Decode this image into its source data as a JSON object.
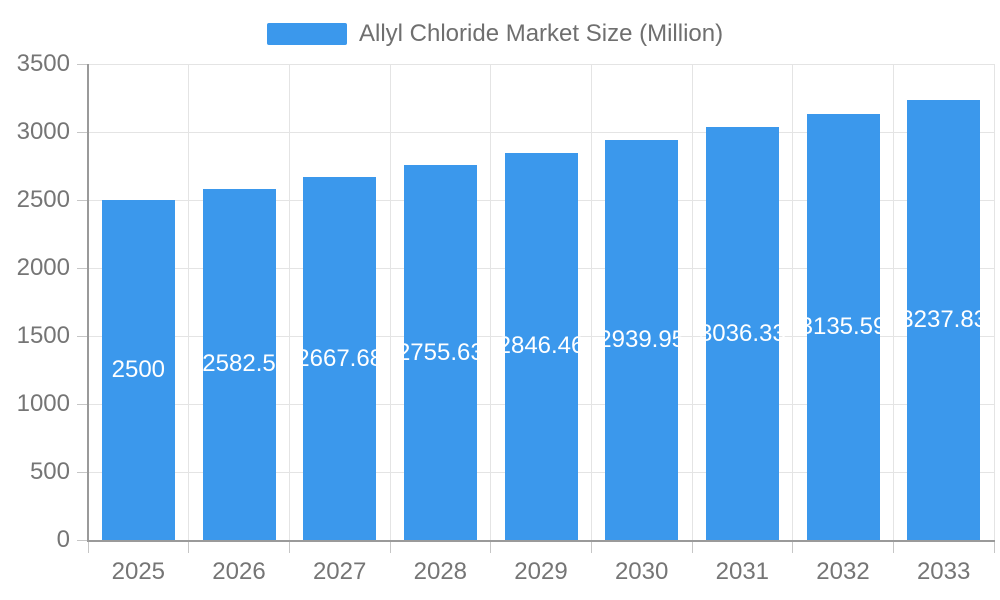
{
  "legend": {
    "label": "Allyl Chloride Market Size (Million)"
  },
  "chart_data": {
    "type": "bar",
    "title": "Allyl Chloride Market Size (Million)",
    "categories": [
      "2025",
      "2026",
      "2027",
      "2028",
      "2029",
      "2030",
      "2031",
      "2032",
      "2033"
    ],
    "series": [
      {
        "name": "Allyl Chloride Market Size (Million)",
        "values": [
          2500,
          2582.5,
          2667.68,
          2755.63,
          2846.46,
          2939.95,
          3036.33,
          3135.59,
          3237.83
        ]
      }
    ],
    "value_labels": [
      "2500",
      "2582.5",
      "2667.68",
      "2755.63",
      "2846.46",
      "2939.95",
      "3036.33",
      "3135.59",
      "3237.83"
    ],
    "xlabel": "",
    "ylabel": "",
    "ylim": [
      0,
      3500
    ],
    "yticks": [
      0,
      500,
      1000,
      1500,
      2000,
      2500,
      3000,
      3500
    ],
    "grid": true,
    "legend_position": "top-center",
    "value_label_position": "inside-middle",
    "bar_color": "#3b98ec",
    "value_label_color": "#ffffff",
    "axis_text_color": "#757575",
    "legend_text_color": "#6f6f6f",
    "grid_line_color": "#e4e4e4",
    "axis_line_color": "#9a9a9a",
    "background_color": "#ffffff"
  }
}
